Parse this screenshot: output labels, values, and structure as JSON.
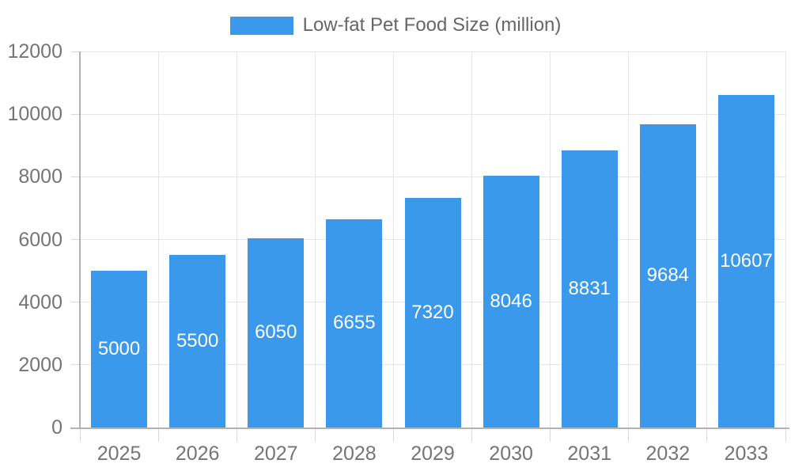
{
  "legend": {
    "label": "Low-fat Pet Food Size (million)"
  },
  "chart_data": {
    "type": "bar",
    "title": "Low-fat Pet Food Size (million)",
    "categories": [
      "2025",
      "2026",
      "2027",
      "2028",
      "2029",
      "2030",
      "2031",
      "2032",
      "2033"
    ],
    "series": [
      {
        "name": "Low-fat Pet Food Size (million)",
        "values": [
          5000,
          5500,
          6050,
          6655,
          7320,
          8046,
          8831,
          9684,
          10607
        ]
      }
    ],
    "value_labels": [
      "5000",
      "5500",
      "6050",
      "6655",
      "7320",
      "8046",
      "8831",
      "9684",
      "10607"
    ],
    "xlabel": "",
    "ylabel": "",
    "ylim": [
      0,
      12000
    ],
    "yticks": [
      0,
      2000,
      4000,
      6000,
      8000,
      10000,
      12000
    ],
    "grid": true,
    "legend_position": "top-center",
    "colors": {
      "bar": "#3b99ec",
      "value_label": "#ffffff",
      "axis_label": "#757575",
      "legend_text": "#666666",
      "grid": "#e6e6e6",
      "tick": "#d9d9d9",
      "axis_line": "#b3b3b3",
      "background": "#ffffff"
    }
  }
}
